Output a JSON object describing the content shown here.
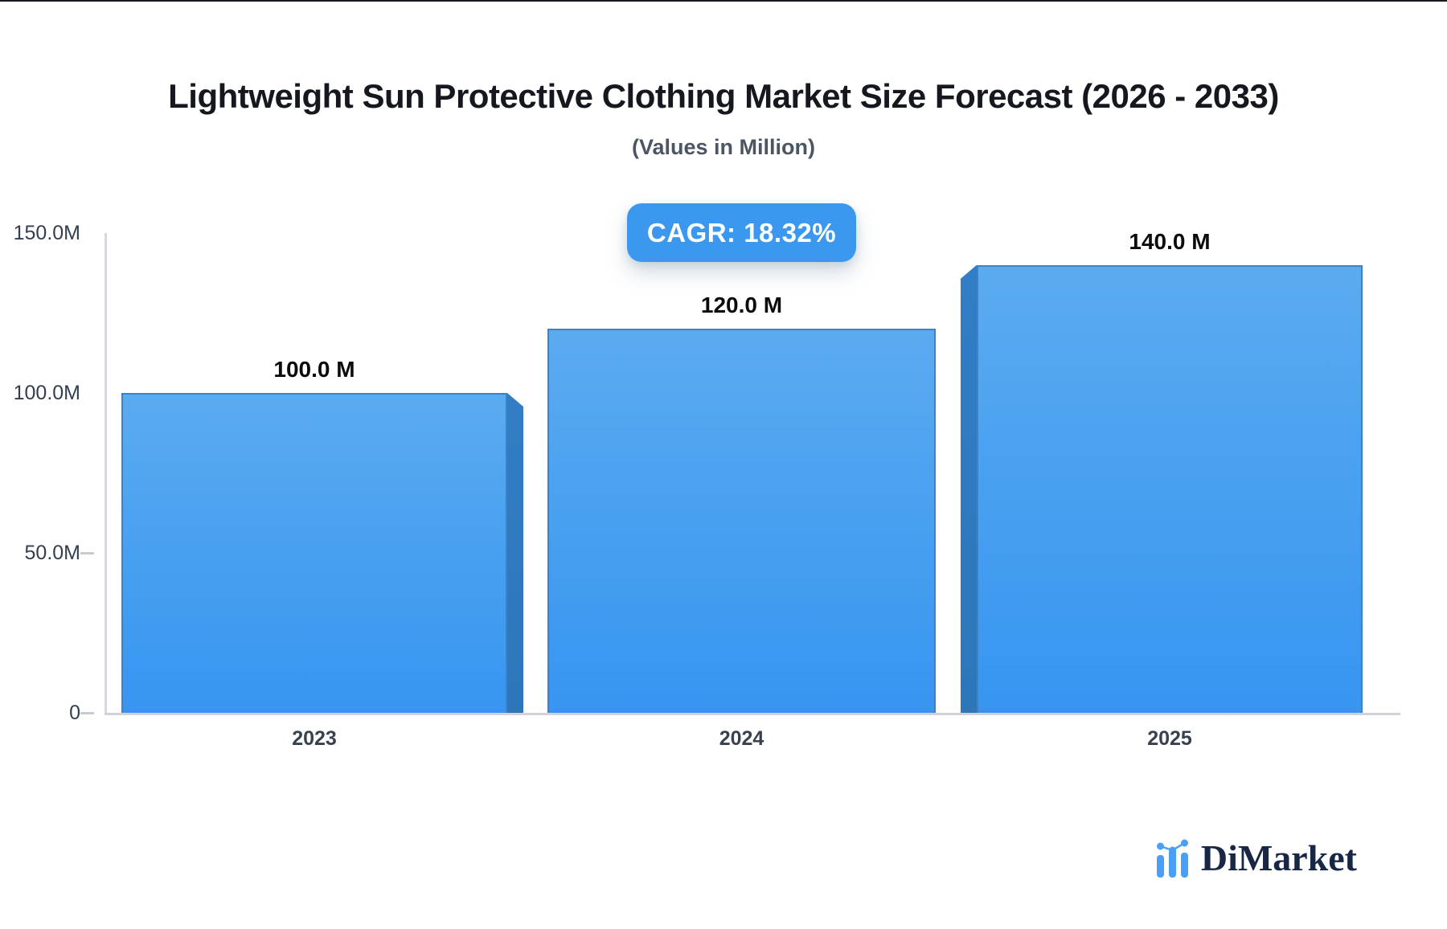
{
  "page": {
    "title": "Lightweight Sun Protective Clothing Market Size Forecast (2026 - 2033)",
    "subtitle": "(Values in Million)",
    "cagr_label": "CAGR: 18.32%"
  },
  "chart_data": {
    "type": "bar",
    "title": "Lightweight Sun Protective Clothing Market Size Forecast (2026 - 2033)",
    "subtitle": "(Values in Million)",
    "unit": "Million",
    "cagr": "18.32%",
    "categories": [
      "2023",
      "2024",
      "2025"
    ],
    "values": [
      100,
      120,
      140
    ],
    "value_labels": [
      "100.0 M",
      "120.0 M",
      "140.0 M"
    ],
    "ylim": [
      0,
      150
    ],
    "yticks": [
      {
        "label": "150.0M",
        "value": 150,
        "dash": false
      },
      {
        "label": "100.0M",
        "value": 100,
        "dash": false
      },
      {
        "label": "50.0M",
        "value": 50,
        "dash": true
      },
      {
        "label": "0",
        "value": 0,
        "dash": true
      }
    ],
    "grid": false,
    "legend": false,
    "bar_depth_sides": [
      "right",
      "none",
      "left"
    ],
    "colors": {
      "bar_top": "#5babf0",
      "bar_bottom": "#3795f1",
      "bar_edge": "#3b82c8",
      "bar_side": "#2f7abe",
      "badge_bg": "#3b98ee",
      "badge_text": "#ffffff",
      "axis_line": "#d5d8dd",
      "tick_text": "#333e4e",
      "category_text": "#39414f",
      "value_text": "#0b0b0c",
      "logo_icon": "#4aa0f5",
      "logo_text": "#182743"
    }
  },
  "logo": {
    "name": "DiMarket",
    "icon": "bar-chart-logo-icon"
  }
}
